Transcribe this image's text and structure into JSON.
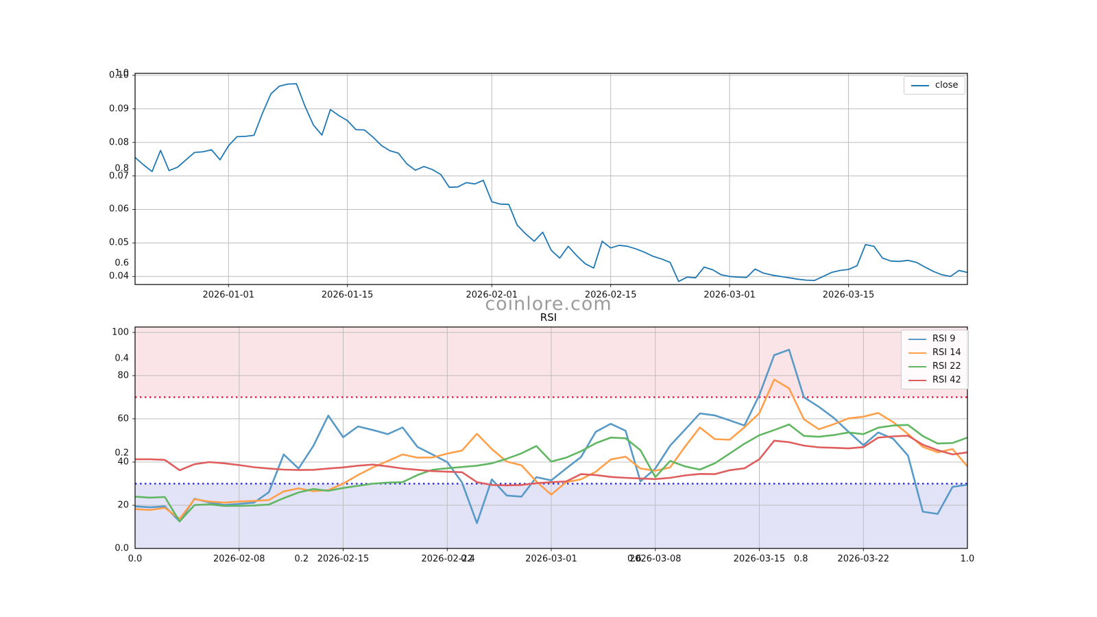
{
  "figure": {
    "watermark": "coinlore.com",
    "background": "#ffffff",
    "grid_color": "#bcbcbc",
    "spine_color": "#000000"
  },
  "twin_axis": {
    "y_labels": [
      "1.0",
      "0.8",
      "0.6",
      "0.4",
      "0.2",
      "0.0"
    ],
    "x_labels": [
      "0.0",
      "0.2",
      "0.4",
      "0.6",
      "0.8",
      "1.0"
    ]
  },
  "chart_data": [
    {
      "type": "line",
      "title": "",
      "start_date": "2025-12-21",
      "n_points": 99,
      "ylim": [
        0.0376,
        0.1006
      ],
      "ytick_values": [
        0.04,
        0.05,
        0.06,
        0.07,
        0.08,
        0.09,
        0.1
      ],
      "ytick_labels": [
        "0.04",
        "0.05",
        "0.06",
        "0.07",
        "0.08",
        "0.09",
        "0.10"
      ],
      "xtick_indices": [
        11,
        25,
        42,
        56,
        70,
        84
      ],
      "xtick_labels": [
        "2026-01-01",
        "2026-01-15",
        "2026-02-01",
        "2026-02-15",
        "2026-03-01",
        "2026-03-15"
      ],
      "grid": true,
      "legend": {
        "position": "upper-right",
        "entries": [
          "close"
        ]
      },
      "series": [
        {
          "name": "close",
          "color": "#1f77b4",
          "width": 1.8,
          "values": [
            0.0755,
            0.0733,
            0.0713,
            0.0776,
            0.0716,
            0.0726,
            0.0748,
            0.077,
            0.0772,
            0.0778,
            0.0748,
            0.079,
            0.0817,
            0.0818,
            0.0821,
            0.0887,
            0.0945,
            0.0968,
            0.0974,
            0.0975,
            0.0908,
            0.0852,
            0.0822,
            0.0898,
            0.088,
            0.0865,
            0.0838,
            0.0837,
            0.0816,
            0.0791,
            0.0775,
            0.0768,
            0.0736,
            0.0717,
            0.0728,
            0.0719,
            0.0704,
            0.0666,
            0.0667,
            0.068,
            0.0676,
            0.0687,
            0.0623,
            0.0616,
            0.0615,
            0.0553,
            0.0527,
            0.0505,
            0.0532,
            0.0478,
            0.0455,
            0.049,
            0.0462,
            0.0438,
            0.0425,
            0.0505,
            0.0485,
            0.0493,
            0.049,
            0.0482,
            0.0472,
            0.046,
            0.0452,
            0.0442,
            0.0385,
            0.0398,
            0.0396,
            0.0428,
            0.042,
            0.0405,
            0.04,
            0.0398,
            0.0397,
            0.0422,
            0.041,
            0.0404,
            0.04,
            0.0396,
            0.0392,
            0.0389,
            0.0388,
            0.04,
            0.0412,
            0.0418,
            0.0421,
            0.0432,
            0.0495,
            0.049,
            0.0455,
            0.0446,
            0.0445,
            0.0448,
            0.0442,
            0.0428,
            0.0415,
            0.0405,
            0.04,
            0.0418,
            0.0412
          ]
        }
      ]
    },
    {
      "type": "line",
      "title": "RSI",
      "start_date": "2026-02-01",
      "n_points": 57,
      "ylim": [
        0,
        102.5
      ],
      "ytick_values": [
        20,
        40,
        60,
        80,
        100
      ],
      "ytick_labels": [
        "20",
        "40",
        "60",
        "80",
        "100"
      ],
      "xtick_indices": [
        7,
        14,
        21,
        28,
        35,
        42,
        49
      ],
      "xtick_labels": [
        "2026-02-08",
        "2026-02-15",
        "2026-02-22",
        "2026-03-01",
        "2026-03-08",
        "2026-03-15",
        "2026-03-22"
      ],
      "grid": true,
      "bands": [
        {
          "from": 70,
          "to": 102.5,
          "color": "#fbe4e7",
          "meaning": "overbought-zone"
        },
        {
          "from": 0,
          "to": 30,
          "color": "#e3e3f8",
          "meaning": "oversold-zone"
        }
      ],
      "hlines": [
        {
          "y": 70,
          "color": "#d8153a",
          "style": "dotted",
          "meaning": "overbought-threshold"
        },
        {
          "y": 30,
          "color": "#2020cd",
          "style": "dotted",
          "meaning": "oversold-threshold"
        }
      ],
      "legend": {
        "position": "upper-right",
        "entries": [
          "RSI 9",
          "RSI 14",
          "RSI 22",
          "RSI 42"
        ]
      },
      "series": [
        {
          "name": "RSI 9",
          "color": "#5799c7",
          "width": 2.6,
          "values": [
            19.5,
            19,
            19.5,
            12.5,
            23,
            21.3,
            20.1,
            20.6,
            21.2,
            26,
            43.5,
            37,
            47.5,
            61.5,
            51.5,
            56.5,
            54.8,
            52.9,
            56,
            47,
            43.5,
            40,
            30.5,
            11.7,
            32,
            24.5,
            24,
            33,
            31.5,
            37,
            42.3,
            54,
            57.7,
            54.5,
            31,
            37,
            47.6,
            55,
            62.5,
            61.6,
            59.3,
            56.9,
            71,
            89.5,
            92,
            70,
            65.6,
            60.5,
            54,
            47.8,
            53.7,
            50.8,
            43,
            17,
            16,
            28.5,
            29.5
          ]
        },
        {
          "name": "RSI 14",
          "color": "#ff9f4a",
          "width": 2.6,
          "values": [
            18.2,
            17.8,
            18.8,
            13.7,
            22.8,
            21.7,
            21.2,
            21.7,
            22,
            22.4,
            26.4,
            27.8,
            26.5,
            27,
            30,
            34,
            37.5,
            40.5,
            43.5,
            42,
            42.1,
            43.9,
            45.3,
            53.1,
            46,
            40.2,
            38.5,
            31,
            24.9,
            30.7,
            32,
            35.5,
            41.2,
            42.5,
            37,
            36,
            37.5,
            47.1,
            56,
            50.6,
            50.3,
            56.1,
            62.6,
            78.2,
            74.1,
            59.8,
            55.2,
            57.5,
            60.2,
            61,
            62.7,
            58.5,
            53,
            47,
            44.5,
            46,
            38
          ]
        },
        {
          "name": "RSI 22",
          "color": "#61b761",
          "width": 2.6,
          "values": [
            24,
            23.5,
            23.8,
            12.5,
            20.1,
            20.4,
            19.7,
            19.7,
            19.9,
            20.3,
            23.3,
            25.9,
            27.5,
            26.7,
            28,
            29,
            30,
            30.5,
            30.7,
            34,
            36.4,
            37.1,
            37.7,
            38.3,
            39.4,
            41.5,
            44,
            47.4,
            40.2,
            42,
            45,
            48.7,
            51.3,
            51,
            45.5,
            33,
            40.5,
            38,
            36.5,
            39.4,
            43.9,
            48.5,
            52.4,
            54.8,
            57.4,
            52.1,
            51.7,
            52.5,
            53.7,
            52.9,
            55.9,
            56.9,
            57.2,
            52,
            48.6,
            48.8,
            51.3
          ]
        },
        {
          "name": "RSI 42",
          "color": "#e05d5e",
          "width": 2.6,
          "values": [
            41.3,
            41.3,
            41,
            36.2,
            39,
            40,
            39.4,
            38.6,
            37.6,
            37,
            36.5,
            36.3,
            36.4,
            37,
            37.5,
            38.3,
            38.8,
            38,
            37,
            36.4,
            35.8,
            35.5,
            35.3,
            30.7,
            29.4,
            29.2,
            29.4,
            30.2,
            30.7,
            31,
            34.4,
            34,
            33.1,
            32.7,
            32.4,
            32.1,
            32.7,
            33.8,
            34.5,
            34.4,
            36.2,
            37.1,
            41.3,
            49.9,
            49.2,
            47.6,
            46.8,
            46.6,
            46.3,
            46.9,
            51.3,
            51.9,
            52.2,
            48,
            45.5,
            43.5,
            44.5
          ]
        }
      ]
    }
  ]
}
